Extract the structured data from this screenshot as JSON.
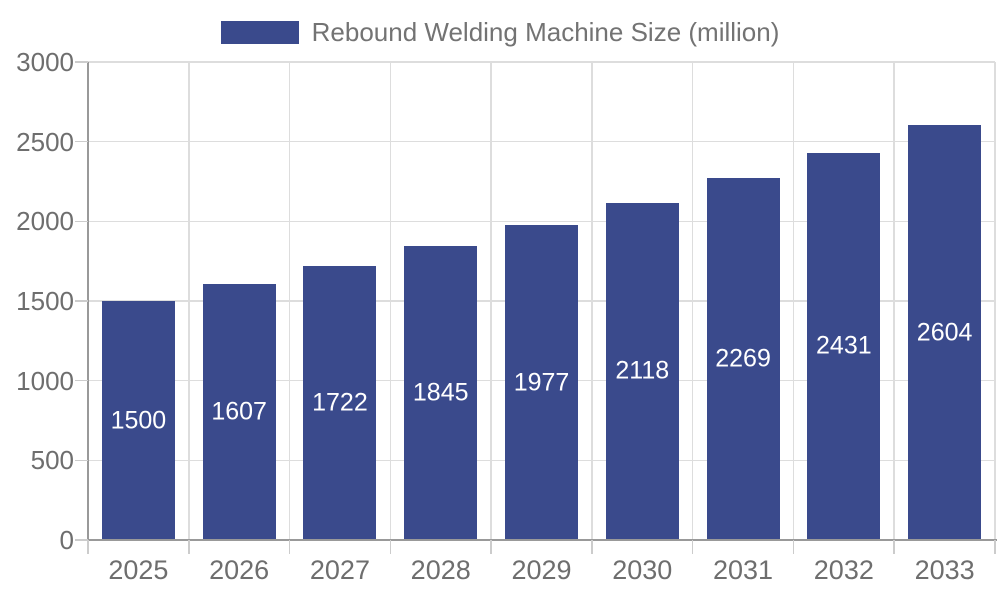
{
  "legend": {
    "label": "Rebound Welding Machine Size (million)"
  },
  "colors": {
    "bar": "#3A4A8C",
    "grid": "#DDDDDD",
    "tick": "#CCCCCC",
    "axis": "#999999",
    "label": "#6E6E6E",
    "legend": "#737373",
    "value": "#FFFFFF",
    "bg": "#FFFFFF"
  },
  "chart_data": {
    "type": "bar",
    "title": "Rebound Welding Machine Size (million)",
    "categories": [
      "2025",
      "2026",
      "2027",
      "2028",
      "2029",
      "2030",
      "2031",
      "2032",
      "2033"
    ],
    "values": [
      1500,
      1607,
      1722,
      1845,
      1977,
      2118,
      2269,
      2431,
      2604
    ],
    "xlabel": "",
    "ylabel": "",
    "ylim": [
      0,
      3000
    ],
    "yticks": [
      0,
      500,
      1000,
      1500,
      2000,
      2500,
      3000
    ],
    "grid": true,
    "legend_position": "top",
    "value_label_position": "inside-center"
  }
}
